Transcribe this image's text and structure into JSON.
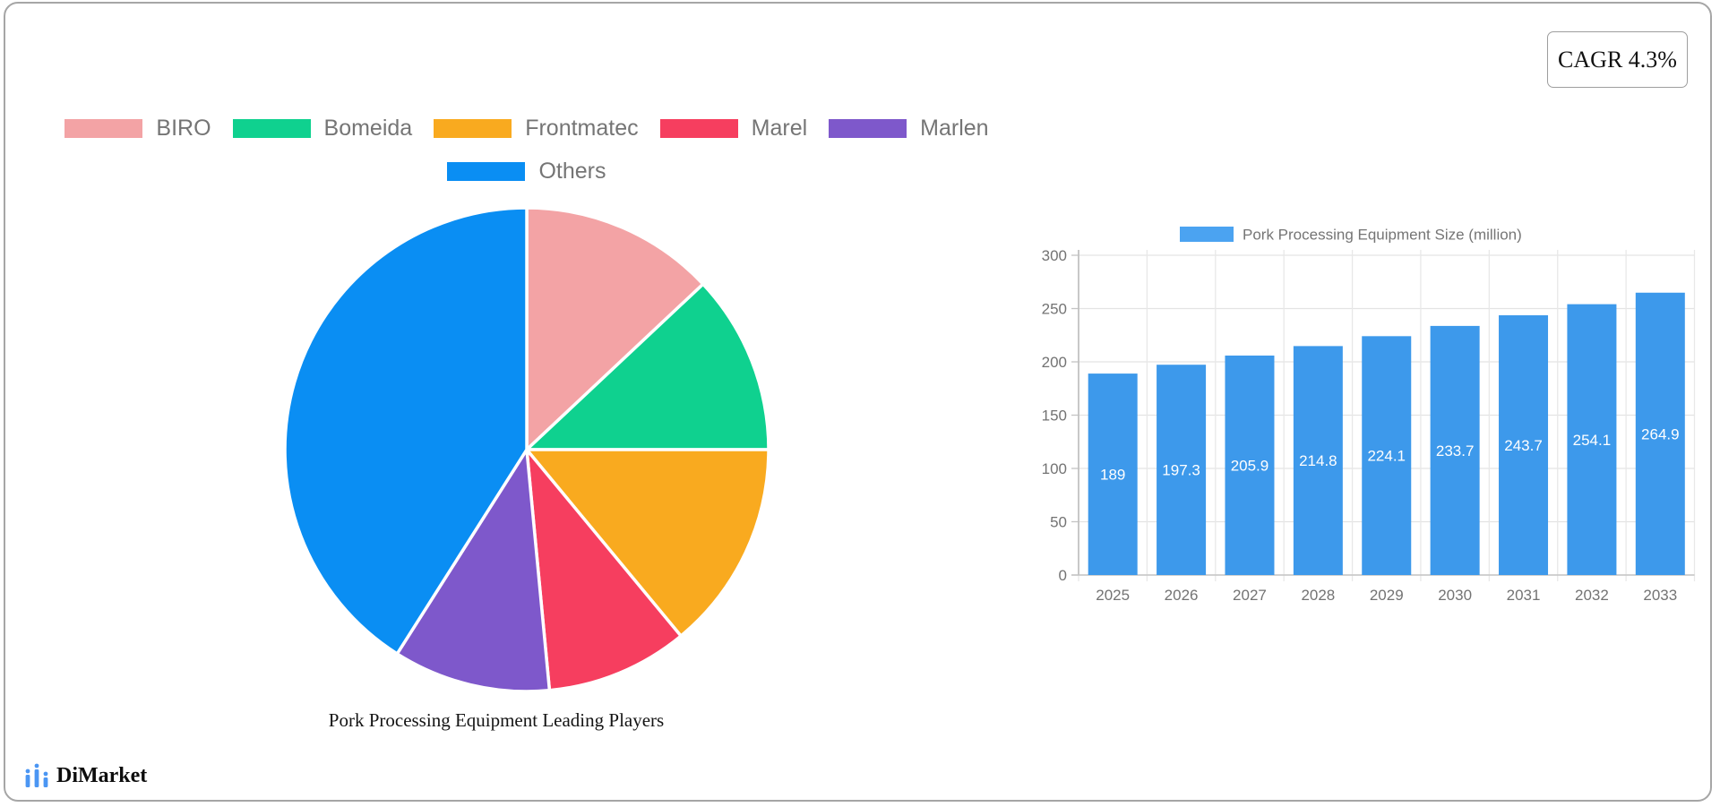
{
  "badge": {
    "label": "CAGR 4.3%"
  },
  "brand": {
    "name": "DiMarket",
    "icon": "bar-chart-logo-icon",
    "icon_color": "#4b96f3"
  },
  "pie_section": {
    "title": "Pork Processing Equipment Leading Players"
  },
  "chart_data": [
    {
      "type": "pie",
      "title": "Pork Processing Equipment Leading Players",
      "legend_position": "top",
      "direction": "clockwise",
      "start_angle_deg": 0,
      "labels": [
        "BIRO",
        "Bomeida",
        "Frontmatec",
        "Marel",
        "Marlen",
        "Others"
      ],
      "values": [
        13,
        12,
        14,
        9.5,
        10.5,
        41
      ],
      "colors": [
        "#f3a3a5",
        "#0fd18f",
        "#f9aa1f",
        "#f63e5f",
        "#7e58cb",
        "#0a8ef3"
      ],
      "slice_gap_color": "#ffffff"
    },
    {
      "type": "bar",
      "legend": "Pork Processing Equipment Size (million)",
      "legend_swatch_color": "#4ba3f1",
      "categories": [
        "2025",
        "2026",
        "2027",
        "2028",
        "2029",
        "2030",
        "2031",
        "2032",
        "2033"
      ],
      "values": [
        189,
        197.3,
        205.9,
        214.8,
        224.1,
        233.7,
        243.7,
        254.1,
        264.9
      ],
      "ylim": [
        0,
        300
      ],
      "ytick_step": 50,
      "ytick_labels": [
        "0",
        "50",
        "100",
        "150",
        "200",
        "250",
        "300"
      ],
      "bar_color": "#3d99eb",
      "value_label_color": "#ffffff",
      "axis_text_color": "#737373",
      "grid": true,
      "value_labels": "inside-middle"
    }
  ]
}
